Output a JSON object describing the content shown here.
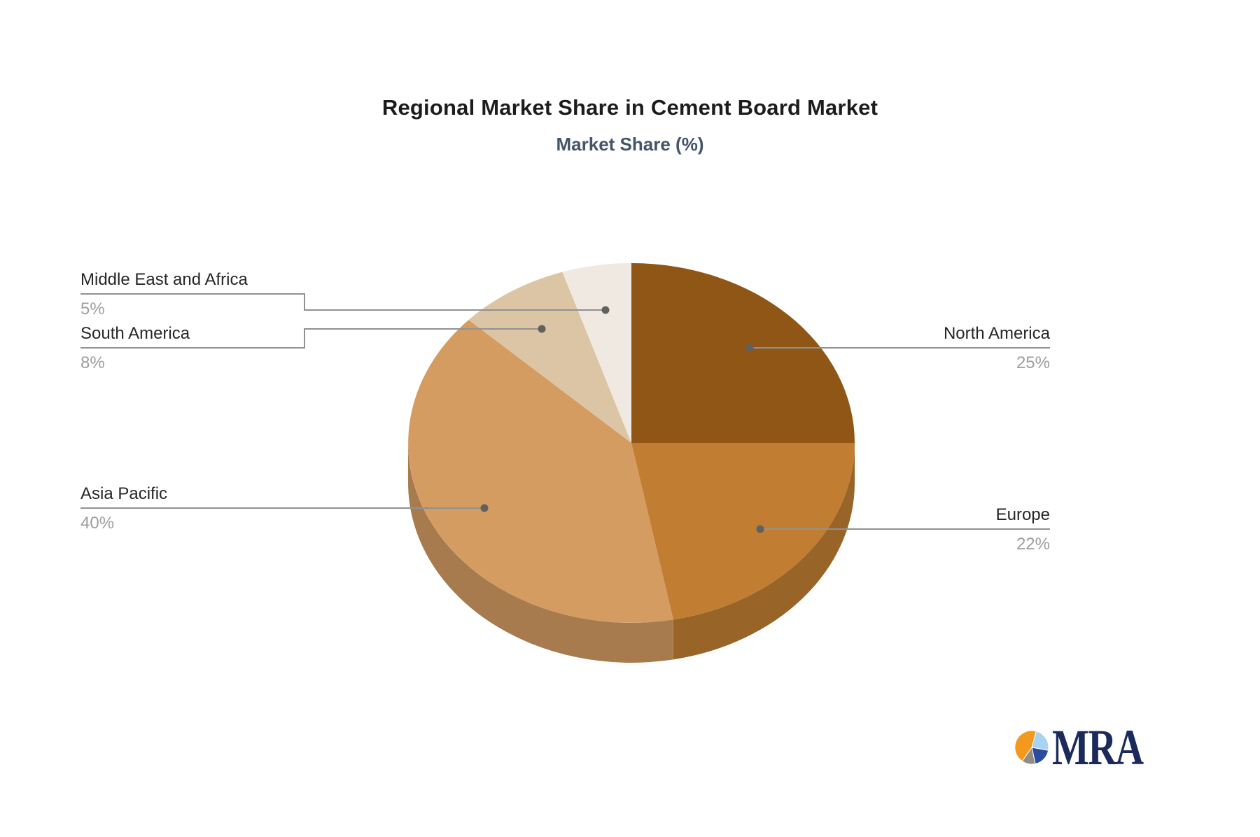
{
  "header": {
    "title": "Regional Market Share in Cement Board Market",
    "subtitle": "Market Share (%)"
  },
  "chart_data": {
    "type": "pie",
    "style": "3d",
    "title": "Regional Market Share in Cement Board Market",
    "subtitle": "Market Share (%)",
    "unit": "%",
    "rotation": "clockwise-from-12-oclock",
    "legend_position": "callout-labels",
    "series": [
      {
        "name": "North America",
        "value": 25,
        "label": "25%",
        "color": "#8F5615"
      },
      {
        "name": "Europe",
        "value": 22,
        "label": "22%",
        "color": "#C17E33"
      },
      {
        "name": "Asia Pacific",
        "value": 40,
        "label": "40%",
        "color": "#D49C61"
      },
      {
        "name": "South America",
        "value": 8,
        "label": "8%",
        "color": "#DCC5A4"
      },
      {
        "name": "Middle East and Africa",
        "value": 5,
        "label": "5%",
        "color": "#F0E9E2"
      }
    ]
  },
  "branding": {
    "logo_text": "MRA",
    "logo_colors": {
      "orange": "#F2991E",
      "light_blue": "#A9D3F2",
      "dark_blue": "#2B4B9E",
      "gray": "#948C84",
      "text": "#1B2A5A"
    }
  },
  "colors": {
    "background": "#ffffff",
    "title": "#1C1C1C",
    "subtitle": "#44546A",
    "label_text": "#262626",
    "percent_text": "#9E9E9E",
    "leader_line": "#919191",
    "leader_dot": "#606060"
  }
}
